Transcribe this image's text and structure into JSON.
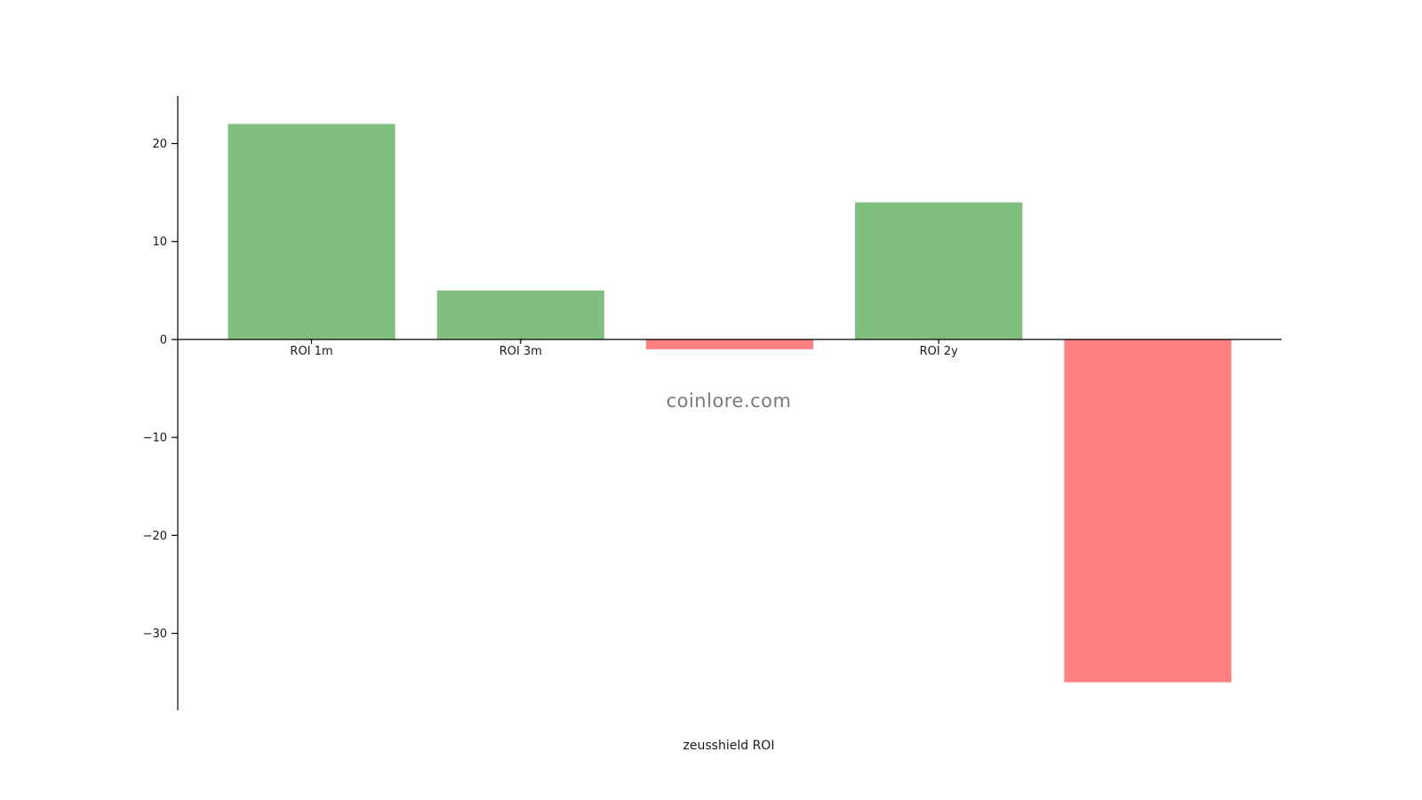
{
  "page": {
    "background_color": "#ffffff"
  },
  "chart_data": {
    "type": "bar",
    "title": "",
    "xlabel": "zeusshield ROI",
    "ylabel": "",
    "watermark": "coinlore.com",
    "categories": [
      "ROI 1m",
      "ROI 3m",
      "",
      "ROI 2y",
      ""
    ],
    "values": [
      22,
      5,
      -1,
      14,
      -35
    ],
    "bar_colors": [
      "#80bf80",
      "#80bf80",
      "#ff8080",
      "#80bf80",
      "#ff8080"
    ],
    "positive_color": "#80bf80",
    "negative_color": "#ff8080",
    "yticks": [
      20,
      10,
      0,
      -10,
      -20,
      -30
    ],
    "ylim": [
      -37.85,
      24.85
    ],
    "xlim": [
      -0.64,
      4.64
    ],
    "bar_width_ratio": 0.8,
    "grid": false,
    "legend_position": "none",
    "axis_color": "#000000",
    "tick_label_color": "#1a1a1a",
    "watermark_color": "#7a7a7a"
  }
}
